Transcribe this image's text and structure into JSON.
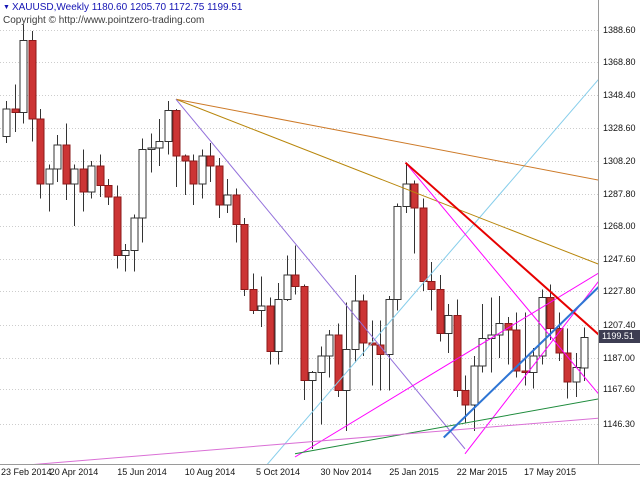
{
  "header": {
    "marker": "▼",
    "quote_line": "XAUUSD,Weekly 1180.60 1205.70 1172.75 1199.51",
    "copyright": "Copyright © http://www.pointzero-trading.com"
  },
  "colors": {
    "quote_text": "#1414b4",
    "copyright_text": "#3c3c3c",
    "axis_text": "#141414",
    "grid": "#cdcdcd",
    "bull_fill": "#ffffff",
    "bull_stroke": "#333333",
    "bear_fill": "#cc3434",
    "bear_stroke": "#8b1a1a",
    "wick": "#333333",
    "current_price_bg": "#3d3d52",
    "current_price_text": "#ffffff"
  },
  "chart_data": {
    "type": "candlestick",
    "symbol": "XAUUSD",
    "timeframe": "Weekly",
    "current": {
      "open": "1180.60",
      "high": "1205.70",
      "low": "1172.75",
      "close": "1199.51"
    },
    "current_price_label": "1199.51",
    "price_axis_labels": [
      "1388.60",
      "1368.80",
      "1348.40",
      "1328.60",
      "1308.20",
      "1287.80",
      "1268.00",
      "1247.60",
      "1227.80",
      "1207.40",
      "1187.00",
      "1167.60",
      "1146.30"
    ],
    "time_axis_labels": [
      {
        "label": "23 Feb 2014",
        "week": 0
      },
      {
        "label": "20 Apr 2014",
        "week": 8
      },
      {
        "label": "15 Jun 2014",
        "week": 16
      },
      {
        "label": "10 Aug 2014",
        "week": 24
      },
      {
        "label": "5 Oct 2014",
        "week": 32
      },
      {
        "label": "30 Nov 2014",
        "week": 40
      },
      {
        "label": "25 Jan 2015",
        "week": 48
      },
      {
        "label": "22 Mar 2015",
        "week": 56
      },
      {
        "label": "17 May 2015",
        "week": 64
      }
    ],
    "candles_ohlc": [
      [
        1323,
        1345,
        1319,
        1340
      ],
      [
        1340,
        1355,
        1326,
        1338
      ],
      [
        1338,
        1392,
        1331,
        1382
      ],
      [
        1382,
        1388,
        1320,
        1334
      ],
      [
        1334,
        1340,
        1285,
        1294
      ],
      [
        1294,
        1306,
        1277,
        1303
      ],
      [
        1303,
        1324,
        1295,
        1318
      ],
      [
        1318,
        1331,
        1284,
        1294
      ],
      [
        1294,
        1306,
        1268,
        1303
      ],
      [
        1303,
        1315,
        1277,
        1289
      ],
      [
        1289,
        1308,
        1285,
        1305
      ],
      [
        1305,
        1312,
        1286,
        1293
      ],
      [
        1293,
        1297,
        1281,
        1286
      ],
      [
        1286,
        1293,
        1242,
        1250
      ],
      [
        1250,
        1257,
        1240,
        1253
      ],
      [
        1253,
        1275,
        1240,
        1273
      ],
      [
        1273,
        1322,
        1258,
        1315
      ],
      [
        1315,
        1325,
        1301,
        1316
      ],
      [
        1316,
        1334,
        1305,
        1320
      ],
      [
        1320,
        1345,
        1312,
        1339
      ],
      [
        1339,
        1340,
        1292,
        1311
      ],
      [
        1311,
        1312,
        1287,
        1308
      ],
      [
        1308,
        1312,
        1281,
        1294
      ],
      [
        1294,
        1315,
        1285,
        1311
      ],
      [
        1311,
        1319,
        1295,
        1305
      ],
      [
        1305,
        1310,
        1273,
        1281
      ],
      [
        1281,
        1297,
        1276,
        1287
      ],
      [
        1287,
        1291,
        1258,
        1269
      ],
      [
        1269,
        1273,
        1225,
        1229
      ],
      [
        1229,
        1239,
        1214,
        1216
      ],
      [
        1216,
        1237,
        1206,
        1219
      ],
      [
        1219,
        1224,
        1183,
        1191
      ],
      [
        1191,
        1233,
        1183,
        1223
      ],
      [
        1223,
        1250,
        1222,
        1238
      ],
      [
        1238,
        1256,
        1226,
        1231
      ],
      [
        1231,
        1232,
        1161,
        1173
      ],
      [
        1173,
        1179,
        1131,
        1178
      ],
      [
        1178,
        1194,
        1146,
        1188
      ],
      [
        1188,
        1204,
        1175,
        1201
      ],
      [
        1201,
        1208,
        1163,
        1167
      ],
      [
        1167,
        1221,
        1142,
        1192
      ],
      [
        1192,
        1238,
        1184,
        1222
      ],
      [
        1222,
        1226,
        1188,
        1196
      ],
      [
        1196,
        1210,
        1170,
        1195
      ],
      [
        1195,
        1210,
        1167,
        1189
      ],
      [
        1189,
        1225,
        1167,
        1223
      ],
      [
        1223,
        1282,
        1216,
        1280
      ],
      [
        1280,
        1307,
        1276,
        1294
      ],
      [
        1294,
        1296,
        1251,
        1279
      ],
      [
        1279,
        1285,
        1228,
        1234
      ],
      [
        1234,
        1246,
        1216,
        1229
      ],
      [
        1229,
        1238,
        1197,
        1202
      ],
      [
        1202,
        1220,
        1190,
        1213
      ],
      [
        1213,
        1223,
        1163,
        1167
      ],
      [
        1167,
        1176,
        1147,
        1158
      ],
      [
        1158,
        1188,
        1142,
        1182
      ],
      [
        1182,
        1220,
        1178,
        1199
      ],
      [
        1199,
        1224,
        1178,
        1201
      ],
      [
        1201,
        1225,
        1187,
        1208
      ],
      [
        1208,
        1212,
        1183,
        1204
      ],
      [
        1204,
        1215,
        1175,
        1179
      ],
      [
        1179,
        1215,
        1170,
        1178
      ],
      [
        1178,
        1193,
        1168,
        1188
      ],
      [
        1188,
        1229,
        1183,
        1224
      ],
      [
        1224,
        1232,
        1198,
        1205
      ],
      [
        1205,
        1215,
        1185,
        1190
      ],
      [
        1190,
        1205,
        1162,
        1172
      ],
      [
        1172,
        1190,
        1163,
        1181
      ],
      [
        1180.6,
        1205.7,
        1172.75,
        1199.51
      ]
    ],
    "trendlines": [
      {
        "name": "ray-skyblue",
        "color": "#87ceeb",
        "width": 1,
        "from": [
          30,
          1117
        ],
        "to": [
          70,
          1360
        ]
      },
      {
        "name": "trendline-orange",
        "color": "#cd7a28",
        "width": 1,
        "from": [
          20,
          1346
        ],
        "to": [
          70,
          1296
        ]
      },
      {
        "name": "trendline-goldenrod",
        "color": "#b8860b",
        "width": 1,
        "from": [
          20,
          1346
        ],
        "to": [
          70,
          1244
        ]
      },
      {
        "name": "trendline-purple",
        "color": "#9370db",
        "width": 1,
        "from": [
          20,
          1346
        ],
        "to": [
          54,
          1131
        ]
      },
      {
        "name": "trendline-magenta-down",
        "color": "#ff00ff",
        "width": 1,
        "from": [
          47,
          1307
        ],
        "to": [
          70,
          1163
        ]
      },
      {
        "name": "trendline-magenta-up-1",
        "color": "#ff00ff",
        "width": 1,
        "from": [
          34,
          1126
        ],
        "to": [
          70,
          1240
        ]
      },
      {
        "name": "trendline-magenta-up-2",
        "color": "#ff00ff",
        "width": 1,
        "from": [
          54,
          1128
        ],
        "to": [
          70,
          1236
        ]
      },
      {
        "name": "trendline-green",
        "color": "#1e8b3c",
        "width": 1,
        "from": [
          34,
          1128
        ],
        "to": [
          70,
          1162
        ]
      },
      {
        "name": "trendline-plum",
        "color": "#da70d6",
        "width": 1,
        "from": [
          0,
          1120
        ],
        "to": [
          70,
          1150
        ]
      },
      {
        "name": "trendline-red",
        "color": "#e60000",
        "width": 2,
        "from": [
          47,
          1307
        ],
        "to": [
          70,
          1200
        ]
      },
      {
        "name": "trendline-blue",
        "color": "#2e75d4",
        "width": 2,
        "from": [
          51.5,
          1138
        ],
        "to": [
          70,
          1232
        ]
      }
    ]
  }
}
